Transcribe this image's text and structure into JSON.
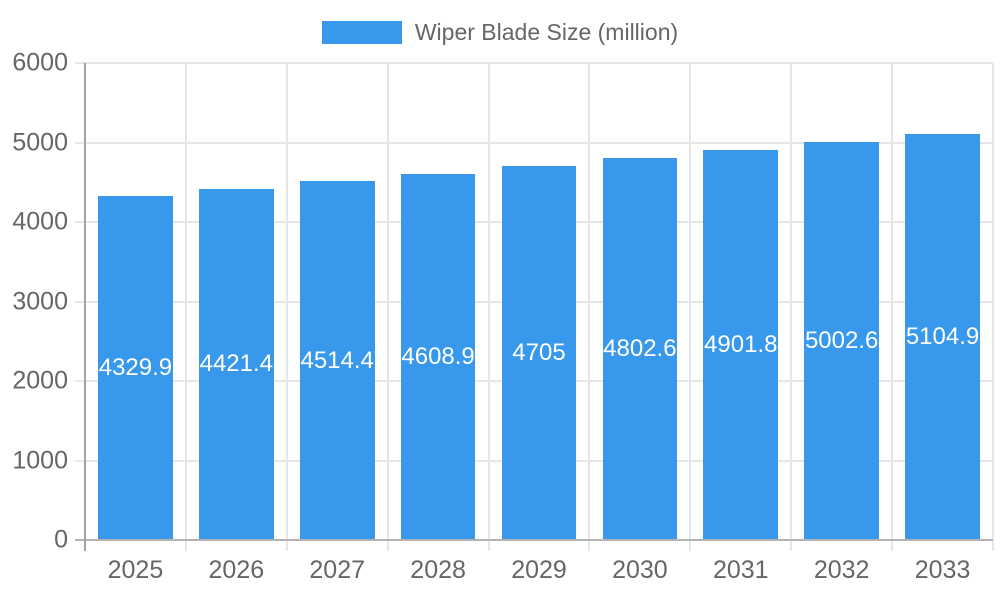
{
  "chart_data": {
    "type": "bar",
    "title": "Wiper Blade Size (million)",
    "categories": [
      "2025",
      "2026",
      "2027",
      "2028",
      "2029",
      "2030",
      "2031",
      "2032",
      "2033"
    ],
    "series": [
      {
        "name": "Wiper Blade Size (million)",
        "color": "#3898EC",
        "values": [
          4329.9,
          4421.4,
          4514.4,
          4608.9,
          4705,
          4802.6,
          4901.8,
          5002.6,
          5104.9
        ],
        "value_labels": [
          "4329.9",
          "4421.4",
          "4514.4",
          "4608.9",
          "4705",
          "4802.6",
          "4901.8",
          "5002.6",
          "5104.9"
        ]
      }
    ],
    "xlabel": "",
    "ylabel": "",
    "ylim": [
      0,
      6000
    ],
    "yticks": [
      0,
      1000,
      2000,
      3000,
      4000,
      5000,
      6000
    ],
    "ytick_labels": [
      "0",
      "1000",
      "2000",
      "3000",
      "4000",
      "5000",
      "6000"
    ],
    "grid": true,
    "legend_position": "top",
    "value_labels_inside_bars": true,
    "colors": {
      "bar": "#3898EC",
      "grid_line": "#e6e6e6",
      "axis_line": "#a3a3a3",
      "zero_line": "#b3b3b3",
      "tick_label": "#666666",
      "bar_label": "#ffffff",
      "background": "#ffffff"
    }
  }
}
